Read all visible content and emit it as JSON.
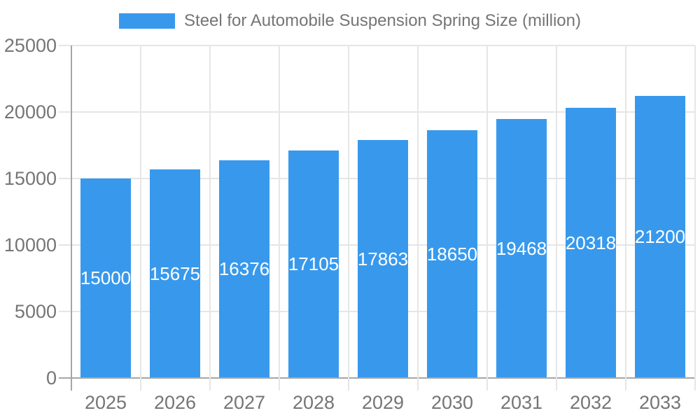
{
  "legend": {
    "label": "Steel for Automobile Suspension Spring Size (million)"
  },
  "chart_data": {
    "type": "bar",
    "title": "Steel for Automobile Suspension Spring Size (million)",
    "series_name": "Steel for Automobile Suspension Spring Size (million)",
    "categories": [
      "2025",
      "2026",
      "2027",
      "2028",
      "2029",
      "2030",
      "2031",
      "2032",
      "2033"
    ],
    "values": [
      15000,
      15675,
      16376,
      17105,
      17863,
      18650,
      19468,
      20318,
      21200
    ],
    "value_labels": [
      "15000",
      "15675",
      "16376",
      "17105",
      "17863",
      "18650",
      "19468",
      "20318",
      "21200"
    ],
    "y_ticks": [
      0,
      5000,
      10000,
      15000,
      20000,
      25000
    ],
    "y_tick_labels": [
      "0",
      "5000",
      "10000",
      "15000",
      "20000",
      "25000"
    ],
    "ylim": [
      0,
      25000
    ],
    "xlabel": "",
    "ylabel": "",
    "grid": true,
    "legend_position": "top",
    "value_label_position": "inside-middle"
  },
  "colors": {
    "bar": "#3899EC",
    "gridline": "#e6e6e6",
    "axis_line": "#a6a6a6",
    "axis_text": "#757575",
    "value_label_text": "#ffffff",
    "background": "#ffffff"
  }
}
